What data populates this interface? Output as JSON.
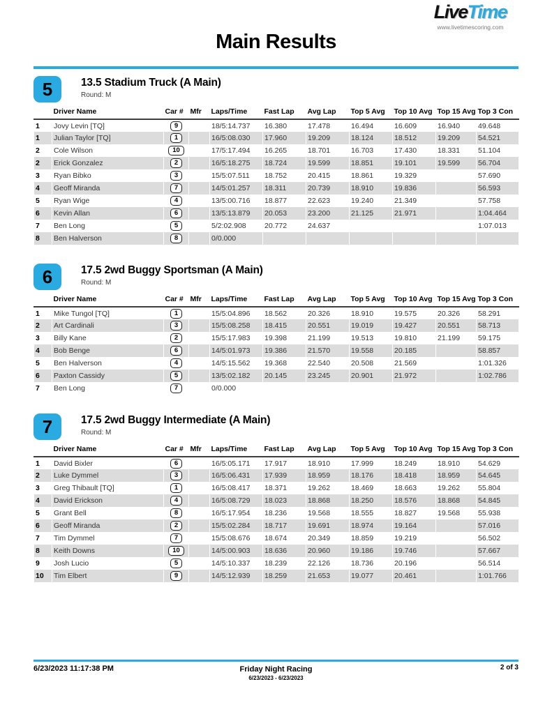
{
  "colors": {
    "accent": "#29ABE2",
    "stripe": "#DCDCDC",
    "rule": "#3d3d3d"
  },
  "header": {
    "title": "Main Results",
    "logo_live": "Live",
    "logo_time": "Time",
    "logo_url": "www.livetimescoring.com"
  },
  "columns": [
    "Driver Name",
    "Car #",
    "Mfr",
    "Laps/Time",
    "Fast Lap",
    "Avg Lap",
    "Top 5 Avg",
    "Top 10 Avg",
    "Top 15 Avg",
    "Top 3 Con"
  ],
  "sections": [
    {
      "number": "5",
      "title": "13.5 Stadium Truck (A Main)",
      "round_label": "Round: M",
      "rows": [
        {
          "pos": "1",
          "driver": "Jovy Levin [TQ]",
          "car": "9",
          "mfr": "",
          "laps_time": "18/5:14.737",
          "fast_lap": "16.380",
          "avg_lap": "17.478",
          "top5": "16.494",
          "top10": "16.609",
          "top15": "16.940",
          "top3con": "49.648"
        },
        {
          "pos": "1",
          "driver": "Julian Taylor [TQ]",
          "car": "1",
          "mfr": "",
          "laps_time": "16/5:08.030",
          "fast_lap": "17.960",
          "avg_lap": "19.209",
          "top5": "18.124",
          "top10": "18.512",
          "top15": "19.209",
          "top3con": "54.521"
        },
        {
          "pos": "2",
          "driver": "Cole Wilson",
          "car": "10",
          "mfr": "",
          "laps_time": "17/5:17.494",
          "fast_lap": "16.265",
          "avg_lap": "18.701",
          "top5": "16.703",
          "top10": "17.430",
          "top15": "18.331",
          "top3con": "51.104"
        },
        {
          "pos": "2",
          "driver": "Erick Gonzalez",
          "car": "2",
          "mfr": "",
          "laps_time": "16/5:18.275",
          "fast_lap": "18.724",
          "avg_lap": "19.599",
          "top5": "18.851",
          "top10": "19.101",
          "top15": "19.599",
          "top3con": "56.704"
        },
        {
          "pos": "3",
          "driver": "Ryan Bibko",
          "car": "3",
          "mfr": "",
          "laps_time": "15/5:07.511",
          "fast_lap": "18.752",
          "avg_lap": "20.415",
          "top5": "18.861",
          "top10": "19.329",
          "top15": "",
          "top3con": "57.690"
        },
        {
          "pos": "4",
          "driver": "Geoff Miranda",
          "car": "7",
          "mfr": "",
          "laps_time": "14/5:01.257",
          "fast_lap": "18.311",
          "avg_lap": "20.739",
          "top5": "18.910",
          "top10": "19.836",
          "top15": "",
          "top3con": "56.593"
        },
        {
          "pos": "5",
          "driver": "Ryan Wige",
          "car": "4",
          "mfr": "",
          "laps_time": "13/5:00.716",
          "fast_lap": "18.877",
          "avg_lap": "22.623",
          "top5": "19.240",
          "top10": "21.349",
          "top15": "",
          "top3con": "57.758"
        },
        {
          "pos": "6",
          "driver": "Kevin Allan",
          "car": "6",
          "mfr": "",
          "laps_time": "13/5:13.879",
          "fast_lap": "20.053",
          "avg_lap": "23.200",
          "top5": "21.125",
          "top10": "21.971",
          "top15": "",
          "top3con": "1:04.464"
        },
        {
          "pos": "7",
          "driver": "Ben Long",
          "car": "5",
          "mfr": "",
          "laps_time": "5/2:02.908",
          "fast_lap": "20.772",
          "avg_lap": "24.637",
          "top5": "",
          "top10": "",
          "top15": "",
          "top3con": "1:07.013"
        },
        {
          "pos": "8",
          "driver": "Ben Halverson",
          "car": "8",
          "mfr": "",
          "laps_time": "0/0.000",
          "fast_lap": "",
          "avg_lap": "",
          "top5": "",
          "top10": "",
          "top15": "",
          "top3con": ""
        }
      ]
    },
    {
      "number": "6",
      "title": "17.5 2wd Buggy Sportsman  (A Main)",
      "round_label": "Round: M",
      "rows": [
        {
          "pos": "1",
          "driver": "Mike Tungol [TQ]",
          "car": "1",
          "mfr": "",
          "laps_time": "15/5:04.896",
          "fast_lap": "18.562",
          "avg_lap": "20.326",
          "top5": "18.910",
          "top10": "19.575",
          "top15": "20.326",
          "top3con": "58.291"
        },
        {
          "pos": "2",
          "driver": "Art Cardinali",
          "car": "3",
          "mfr": "",
          "laps_time": "15/5:08.258",
          "fast_lap": "18.415",
          "avg_lap": "20.551",
          "top5": "19.019",
          "top10": "19.427",
          "top15": "20.551",
          "top3con": "58.713"
        },
        {
          "pos": "3",
          "driver": "Billy Kane",
          "car": "2",
          "mfr": "",
          "laps_time": "15/5:17.983",
          "fast_lap": "19.398",
          "avg_lap": "21.199",
          "top5": "19.513",
          "top10": "19.810",
          "top15": "21.199",
          "top3con": "59.175"
        },
        {
          "pos": "4",
          "driver": "Bob Benge",
          "car": "6",
          "mfr": "",
          "laps_time": "14/5:01.973",
          "fast_lap": "19.386",
          "avg_lap": "21.570",
          "top5": "19.558",
          "top10": "20.185",
          "top15": "",
          "top3con": "58.857"
        },
        {
          "pos": "5",
          "driver": "Ben Halverson",
          "car": "4",
          "mfr": "",
          "laps_time": "14/5:15.562",
          "fast_lap": "19.368",
          "avg_lap": "22.540",
          "top5": "20.508",
          "top10": "21.569",
          "top15": "",
          "top3con": "1:01.326"
        },
        {
          "pos": "6",
          "driver": "Paxton Cassidy",
          "car": "5",
          "mfr": "",
          "laps_time": "13/5:02.182",
          "fast_lap": "20.145",
          "avg_lap": "23.245",
          "top5": "20.901",
          "top10": "21.972",
          "top15": "",
          "top3con": "1:02.786"
        },
        {
          "pos": "7",
          "driver": "Ben Long",
          "car": "7",
          "mfr": "",
          "laps_time": "0/0.000",
          "fast_lap": "",
          "avg_lap": "",
          "top5": "",
          "top10": "",
          "top15": "",
          "top3con": ""
        }
      ]
    },
    {
      "number": "7",
      "title": "17.5 2wd Buggy Intermediate (A Main)",
      "round_label": "Round: M",
      "rows": [
        {
          "pos": "1",
          "driver": "David Bixler",
          "car": "6",
          "mfr": "",
          "laps_time": "16/5:05.171",
          "fast_lap": "17.917",
          "avg_lap": "18.910",
          "top5": "17.999",
          "top10": "18.249",
          "top15": "18.910",
          "top3con": "54.629"
        },
        {
          "pos": "2",
          "driver": "Luke Dymmel",
          "car": "3",
          "mfr": "",
          "laps_time": "16/5:06.431",
          "fast_lap": "17.939",
          "avg_lap": "18.959",
          "top5": "18.176",
          "top10": "18.418",
          "top15": "18.959",
          "top3con": "54.645"
        },
        {
          "pos": "3",
          "driver": "Greg Thibault [TQ]",
          "car": "1",
          "mfr": "",
          "laps_time": "16/5:08.417",
          "fast_lap": "18.371",
          "avg_lap": "19.262",
          "top5": "18.469",
          "top10": "18.663",
          "top15": "19.262",
          "top3con": "55.804"
        },
        {
          "pos": "4",
          "driver": "David Erickson",
          "car": "4",
          "mfr": "",
          "laps_time": "16/5:08.729",
          "fast_lap": "18.023",
          "avg_lap": "18.868",
          "top5": "18.250",
          "top10": "18.576",
          "top15": "18.868",
          "top3con": "54.845"
        },
        {
          "pos": "5",
          "driver": "Grant Bell",
          "car": "8",
          "mfr": "",
          "laps_time": "16/5:17.954",
          "fast_lap": "18.236",
          "avg_lap": "19.568",
          "top5": "18.555",
          "top10": "18.827",
          "top15": "19.568",
          "top3con": "55.938"
        },
        {
          "pos": "6",
          "driver": "Geoff Miranda",
          "car": "2",
          "mfr": "",
          "laps_time": "15/5:02.284",
          "fast_lap": "18.717",
          "avg_lap": "19.691",
          "top5": "18.974",
          "top10": "19.164",
          "top15": "",
          "top3con": "57.016"
        },
        {
          "pos": "7",
          "driver": "Tim Dymmel",
          "car": "7",
          "mfr": "",
          "laps_time": "15/5:08.676",
          "fast_lap": "18.674",
          "avg_lap": "20.349",
          "top5": "18.859",
          "top10": "19.219",
          "top15": "",
          "top3con": "56.502"
        },
        {
          "pos": "8",
          "driver": "Keith Downs",
          "car": "10",
          "mfr": "",
          "laps_time": "14/5:00.903",
          "fast_lap": "18.636",
          "avg_lap": "20.960",
          "top5": "19.186",
          "top10": "19.746",
          "top15": "",
          "top3con": "57.667"
        },
        {
          "pos": "9",
          "driver": "Josh Lucio",
          "car": "5",
          "mfr": "",
          "laps_time": "14/5:10.337",
          "fast_lap": "18.239",
          "avg_lap": "22.126",
          "top5": "18.736",
          "top10": "20.196",
          "top15": "",
          "top3con": "56.514"
        },
        {
          "pos": "10",
          "driver": "Tim Elbert",
          "car": "9",
          "mfr": "",
          "laps_time": "14/5:12.939",
          "fast_lap": "18.259",
          "avg_lap": "21.653",
          "top5": "19.077",
          "top10": "20.461",
          "top15": "",
          "top3con": "1:01.766"
        }
      ]
    }
  ],
  "footer": {
    "timestamp": "6/23/2023 11:17:38 PM",
    "event": "Friday Night Racing",
    "dates": "6/23/2023 - 6/23/2023",
    "page": "2 of 3"
  }
}
